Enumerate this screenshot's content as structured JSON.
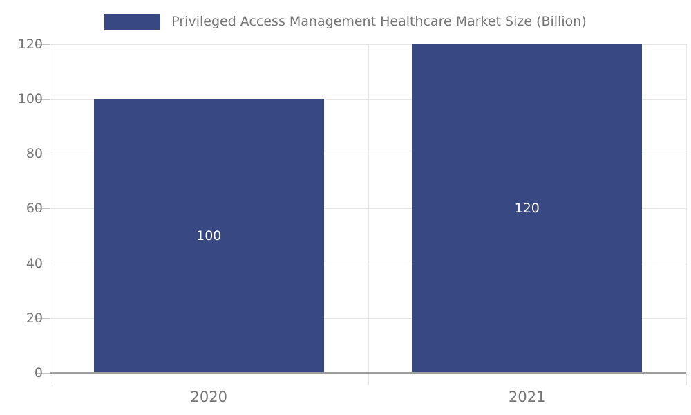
{
  "chart_data": {
    "type": "bar",
    "title": "",
    "legend": {
      "position": "top",
      "label": "Privileged Access Management Healthcare Market Size (Billion)"
    },
    "categories": [
      "2020",
      "2021"
    ],
    "series": [
      {
        "name": "Privileged Access Management Healthcare Market Size (Billion)",
        "values": [
          100,
          120
        ],
        "data_labels": [
          "100",
          "120"
        ],
        "color": "#374883"
      }
    ],
    "xlabel": "",
    "ylabel": "",
    "ylim": [
      0,
      120
    ],
    "yticks": [
      0,
      20,
      40,
      60,
      80,
      100,
      120
    ],
    "grid": true,
    "legend_position": "top"
  },
  "colors": {
    "bar": "#374883",
    "grid": "#e6e6e6",
    "axis": "#9e9e9e",
    "spine": "#a8a8a8",
    "tick": "#c4c4c4",
    "text": "#757575",
    "bar_label": "#ffffff",
    "background": "#ffffff"
  }
}
